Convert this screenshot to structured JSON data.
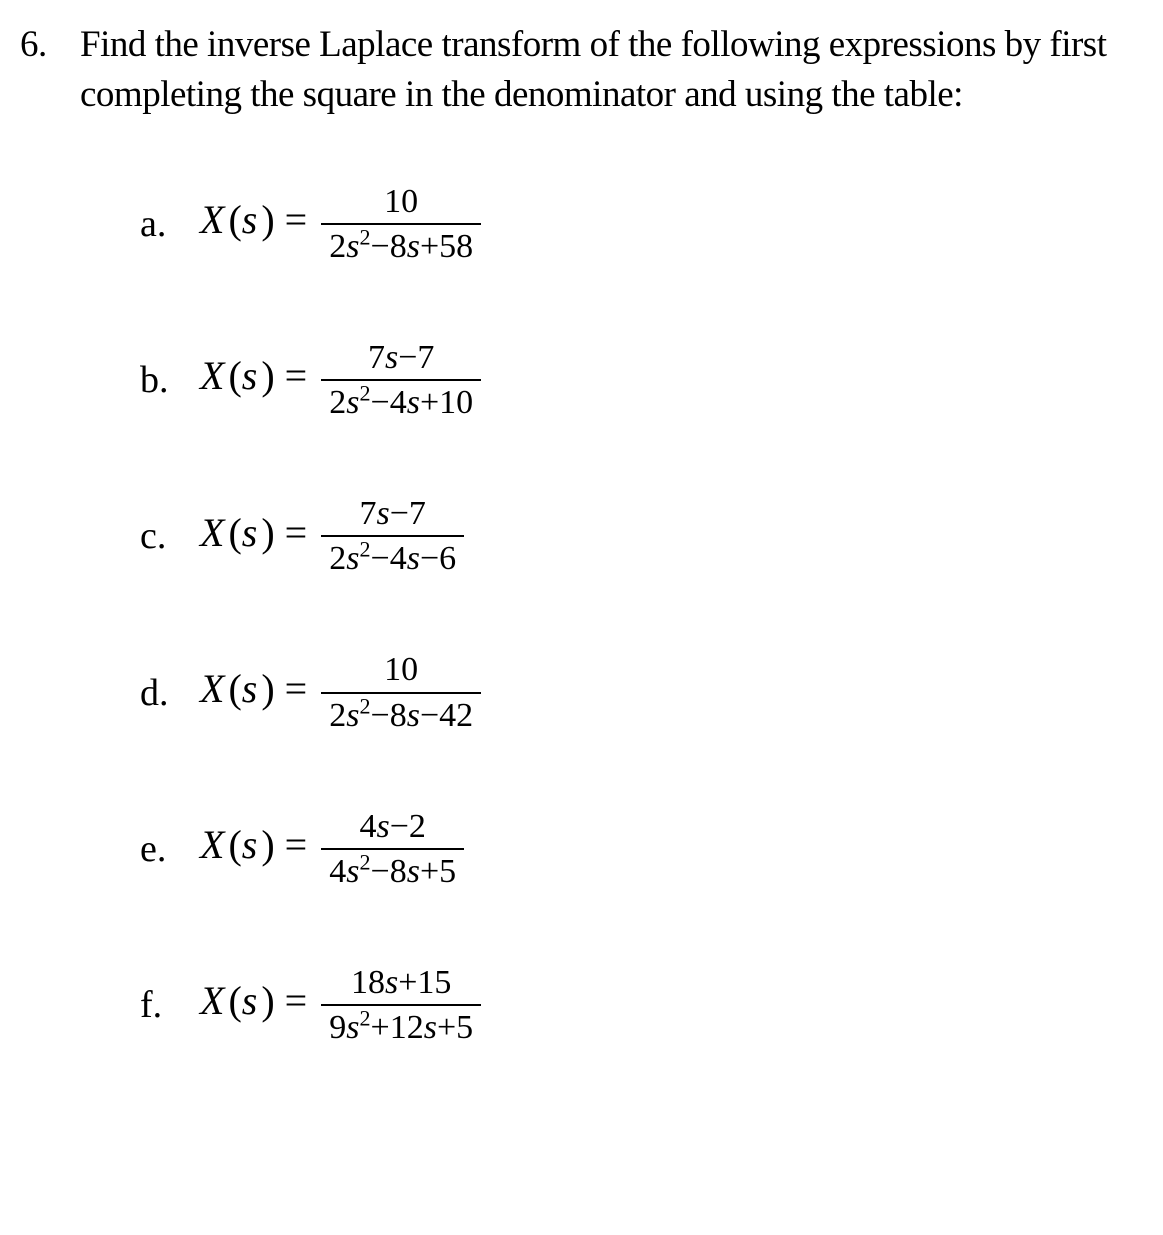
{
  "problem": {
    "number": "6.",
    "text": "Find the inverse Laplace transform of the following expressions by first completing the square in the denominator and using the table:"
  },
  "fontsize": {
    "prompt": 37,
    "subpart": 40,
    "fraction": 34
  },
  "colors": {
    "text": "#000000",
    "background": "#ffffff"
  },
  "subparts": [
    {
      "label": "a.",
      "lhs": "X(s)",
      "numerator": "10",
      "denominator": "2s²−8s+58",
      "num_terms": [
        "10"
      ],
      "den_terms": [
        "2s^2",
        "−8s",
        "+58"
      ]
    },
    {
      "label": "b.",
      "lhs": "X(s)",
      "numerator": "7s−7",
      "denominator": "2s²−4s+10",
      "num_terms": [
        "7s",
        "−7"
      ],
      "den_terms": [
        "2s^2",
        "−4s",
        "+10"
      ]
    },
    {
      "label": "c.",
      "lhs": "X(s)",
      "numerator": "7s−7",
      "denominator": "2s²−4s−6",
      "num_terms": [
        "7s",
        "−7"
      ],
      "den_terms": [
        "2s^2",
        "−4s",
        "−6"
      ]
    },
    {
      "label": "d.",
      "lhs": "X(s)",
      "numerator": "10",
      "denominator": "2s²−8s−42",
      "num_terms": [
        "10"
      ],
      "den_terms": [
        "2s^2",
        "−8s",
        "−42"
      ]
    },
    {
      "label": "e.",
      "lhs": "X(s)",
      "numerator": "4s−2",
      "denominator": "4s²−8s+5",
      "num_terms": [
        "4s",
        "−2"
      ],
      "den_terms": [
        "4s^2",
        "−8s",
        "+5"
      ]
    },
    {
      "label": "f.",
      "lhs": "X(s)",
      "numerator": "18s+15",
      "denominator": "9s²+12s+5",
      "num_terms": [
        "18s",
        "+15"
      ],
      "den_terms": [
        "9s^2",
        "+12s",
        "+5"
      ]
    }
  ]
}
